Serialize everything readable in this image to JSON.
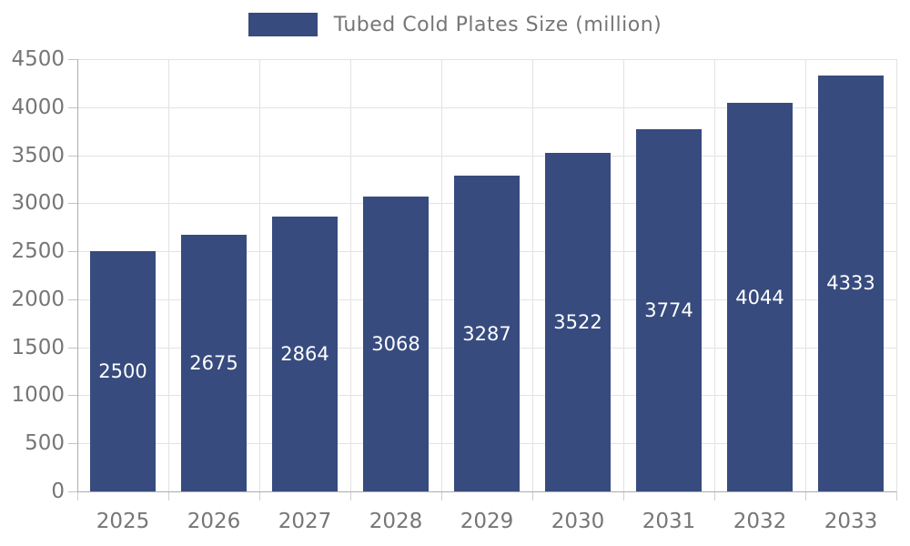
{
  "chart_data": {
    "type": "bar",
    "title": "Tubed Cold Plates Size (million)",
    "legend": {
      "position": "top",
      "entries": [
        "Tubed Cold Plates Size (million)"
      ]
    },
    "categories": [
      "2025",
      "2026",
      "2027",
      "2028",
      "2029",
      "2030",
      "2031",
      "2032",
      "2033"
    ],
    "values": [
      2500,
      2675,
      2864,
      3068,
      3287,
      3522,
      3774,
      4044,
      4333
    ],
    "value_labels_shown": true,
    "xlabel": "",
    "ylabel": "",
    "ylim": [
      0,
      4500
    ],
    "yticks": [
      0,
      500,
      1000,
      1500,
      2000,
      2500,
      3000,
      3500,
      4000,
      4500
    ],
    "grid": true,
    "colors": {
      "bar": "#374B7E",
      "value_label": "#FFFFFF",
      "axis_text": "#767676",
      "grid_line": "#E3E3E3",
      "axis_line": "#ACACAC"
    }
  }
}
